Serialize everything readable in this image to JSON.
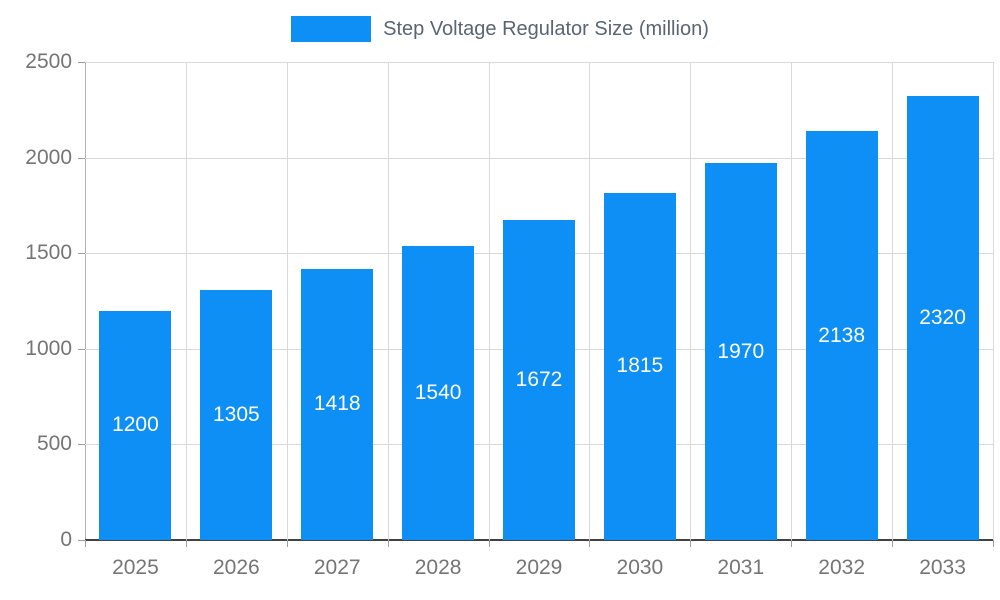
{
  "chart_data": {
    "type": "bar",
    "title": "Step Voltage Regulator Size (million)",
    "categories": [
      "2025",
      "2026",
      "2027",
      "2028",
      "2029",
      "2030",
      "2031",
      "2032",
      "2033"
    ],
    "values": [
      1200,
      1305,
      1418,
      1540,
      1672,
      1815,
      1970,
      2138,
      2320
    ],
    "xlabel": "",
    "ylabel": "",
    "ylim": [
      0,
      2500
    ],
    "yticks": [
      0,
      500,
      1000,
      1500,
      2000,
      2500
    ],
    "grid": true,
    "legend": {
      "label": "Step Voltage Regulator Size (million)",
      "position": "top"
    },
    "colors": {
      "bar": "#0d8ff5",
      "value_label": "#ffffff",
      "tick_label": "#757575",
      "gridline": "#d9d9d9",
      "legend_text": "#5a6572"
    }
  }
}
